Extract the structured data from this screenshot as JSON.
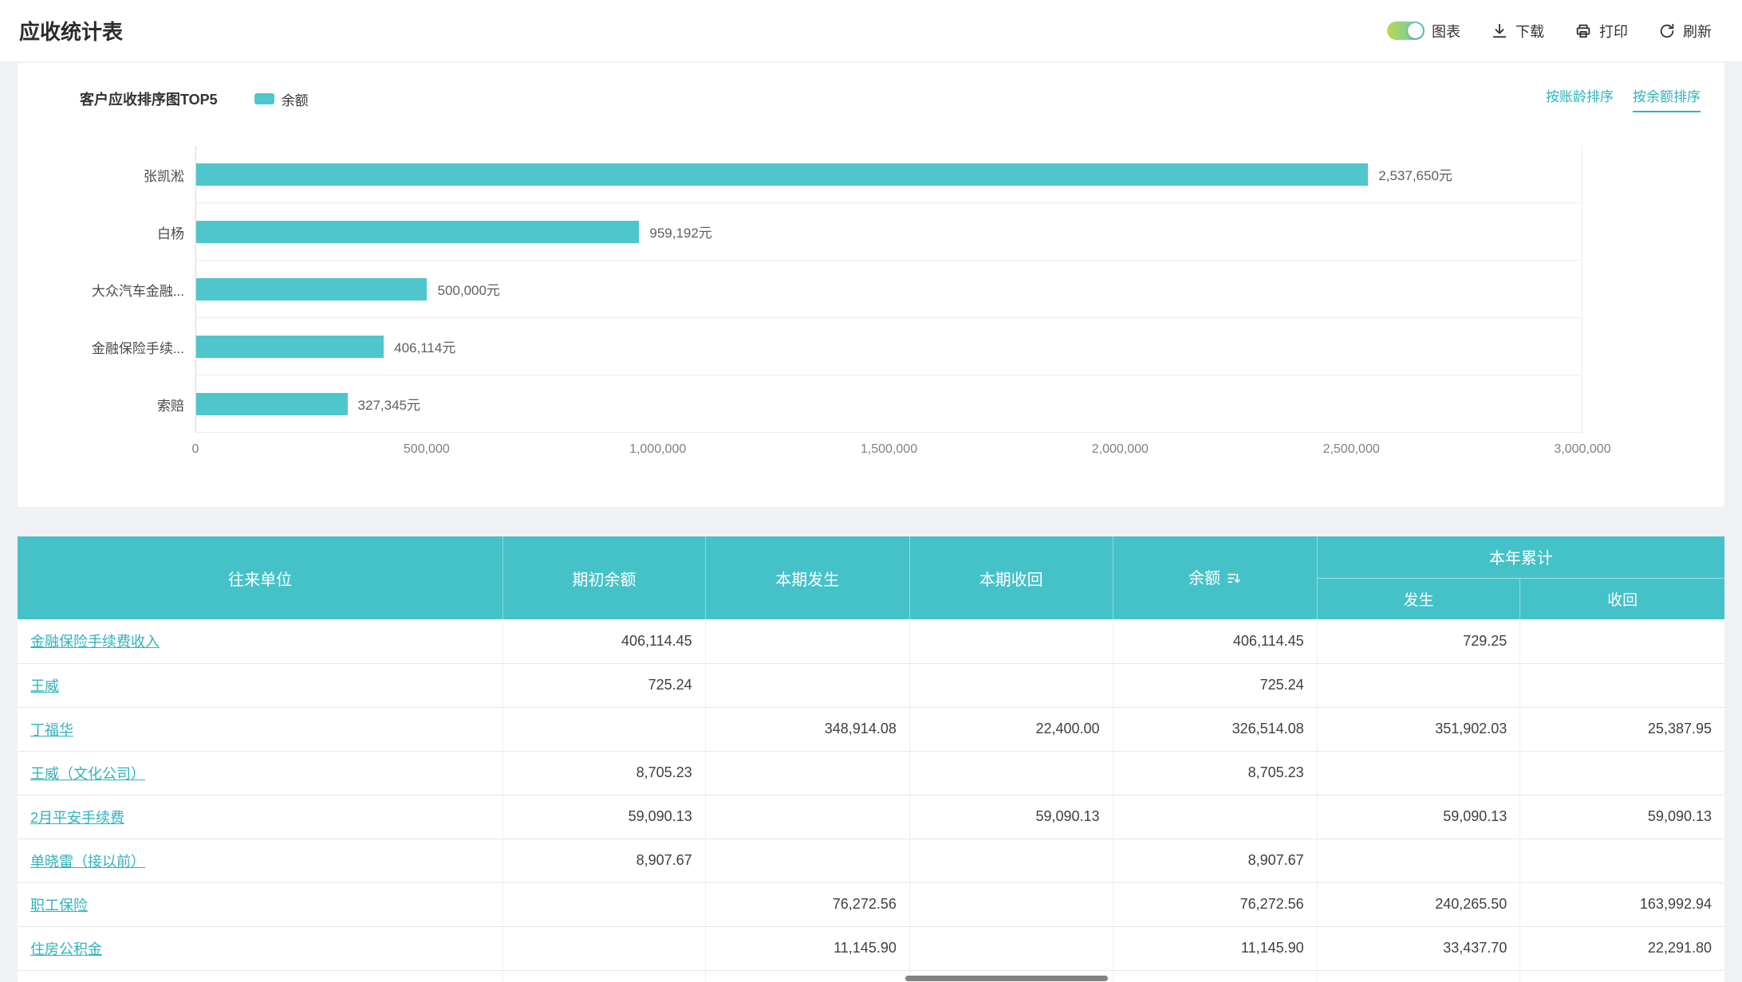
{
  "colors": {
    "teal": "#45c2c8",
    "bar": "#4fc6cc",
    "link": "#2fb3bc",
    "page_bg": "#eff1f4"
  },
  "header": {
    "title": "应收统计表",
    "controls": {
      "chart": "图表",
      "download": "下载",
      "print": "打印",
      "refresh": "刷新"
    },
    "icons": [
      "toggle-switch",
      "download-icon",
      "printer-icon",
      "refresh-icon"
    ]
  },
  "chart": {
    "title": "客户应收排序图TOP5",
    "legend_label": "余额",
    "tabs": [
      {
        "label": "按账龄排序",
        "active": false
      },
      {
        "label": "按余额排序",
        "active": true
      }
    ]
  },
  "chart_data": {
    "type": "bar",
    "orientation": "horizontal",
    "title": "客户应收排序图TOP5",
    "series_name": "余额",
    "categories": [
      "张凯淞",
      "白杨",
      "大众汽车金融...",
      "金融保险手续...",
      "索赔"
    ],
    "values": [
      2537650,
      959192,
      500000,
      406114,
      327345
    ],
    "value_labels": [
      "2,537,650元",
      "959,192元",
      "500,000元",
      "406,114元",
      "327,345元"
    ],
    "unit": "元",
    "xlim": [
      0,
      3000000
    ],
    "x_ticks": [
      "0",
      "500,000",
      "1,000,000",
      "1,500,000",
      "2,000,000",
      "2,500,000",
      "3,000,000"
    ],
    "grid": "horizontal-splitlines",
    "legend_position": "top",
    "bar_color": "#4fc6cc"
  },
  "table": {
    "headers": {
      "counterparty": "往来单位",
      "opening": "期初余额",
      "occurred": "本期发生",
      "recovered": "本期收回",
      "balance": "余额",
      "year_group": "本年累计",
      "year_occurred": "发生",
      "year_recovered": "收回"
    },
    "sort_icon": "sort-descending-icon",
    "rows": [
      {
        "name": "金融保险手续费收入",
        "opening": "406,114.45",
        "occurred": "",
        "recovered": "",
        "balance": "406,114.45",
        "year_occurred": "729.25",
        "year_recovered": ""
      },
      {
        "name": "王威",
        "opening": "725.24",
        "occurred": "",
        "recovered": "",
        "balance": "725.24",
        "year_occurred": "",
        "year_recovered": ""
      },
      {
        "name": "丁福华",
        "opening": "",
        "occurred": "348,914.08",
        "recovered": "22,400.00",
        "balance": "326,514.08",
        "year_occurred": "351,902.03",
        "year_recovered": "25,387.95"
      },
      {
        "name": "王威（文化公司）",
        "opening": "8,705.23",
        "occurred": "",
        "recovered": "",
        "balance": "8,705.23",
        "year_occurred": "",
        "year_recovered": ""
      },
      {
        "name": "2月平安手续费",
        "opening": "59,090.13",
        "occurred": "",
        "recovered": "59,090.13",
        "balance": "",
        "year_occurred": "59,090.13",
        "year_recovered": "59,090.13"
      },
      {
        "name": "单晓雷（接以前）",
        "opening": "8,907.67",
        "occurred": "",
        "recovered": "",
        "balance": "8,907.67",
        "year_occurred": "",
        "year_recovered": ""
      },
      {
        "name": "职工保险",
        "opening": "",
        "occurred": "76,272.56",
        "recovered": "",
        "balance": "76,272.56",
        "year_occurred": "240,265.50",
        "year_recovered": "163,992.94"
      },
      {
        "name": "住房公积金",
        "opening": "",
        "occurred": "11,145.90",
        "recovered": "",
        "balance": "11,145.90",
        "year_occurred": "33,437.70",
        "year_recovered": "22,291.80"
      }
    ]
  }
}
